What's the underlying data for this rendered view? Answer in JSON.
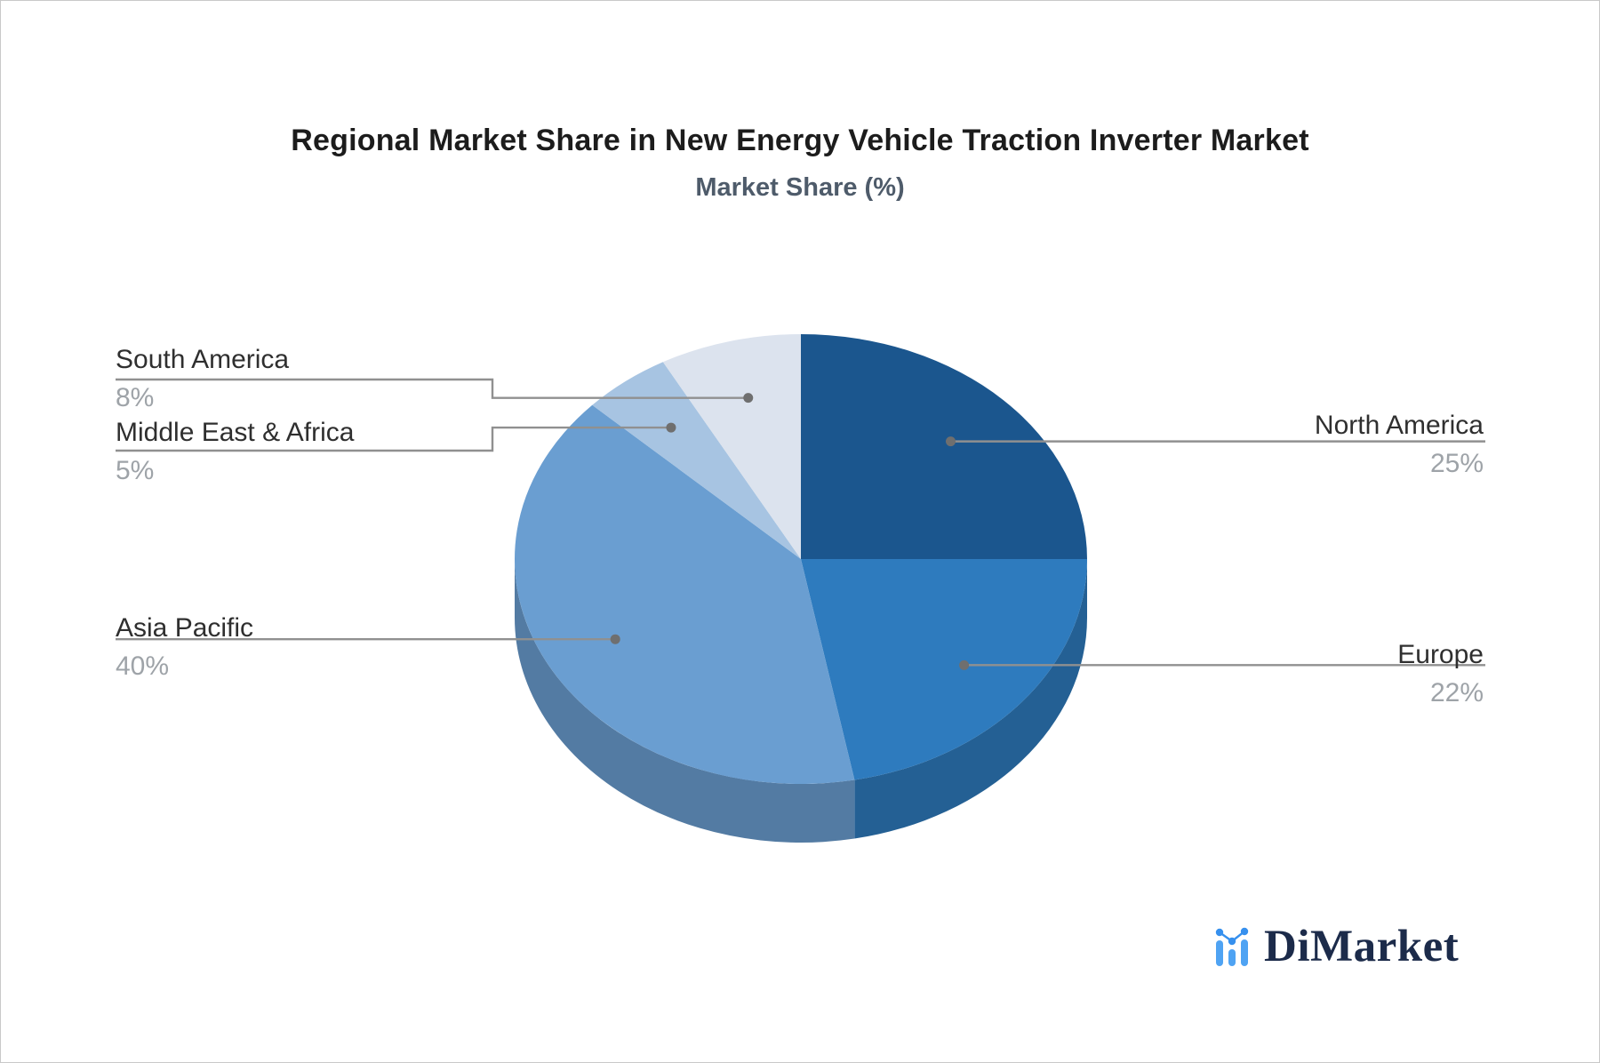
{
  "header": {
    "title": "Regional Market Share in New Energy Vehicle Traction Inverter Market",
    "subtitle": "Market Share (%)"
  },
  "chart_data": {
    "type": "pie",
    "style": "3d-extruded",
    "title": "Regional Market Share in New Energy Vehicle Traction Inverter Market",
    "subtitle": "Market Share (%)",
    "unit": "%",
    "start_angle": "12-oclock",
    "direction": "clockwise",
    "total": 100,
    "series": [
      {
        "name": "North America",
        "value": 25,
        "value_label": "25%",
        "color": "#1B568E"
      },
      {
        "name": "Europe",
        "value": 22,
        "value_label": "22%",
        "color": "#2E7BBE"
      },
      {
        "name": "Asia Pacific",
        "value": 40,
        "value_label": "40%",
        "color": "#6A9ED1"
      },
      {
        "name": "Middle East & Africa",
        "value": 5,
        "value_label": "5%",
        "color": "#A7C4E2"
      },
      {
        "name": "South America",
        "value": 8,
        "value_label": "8%",
        "color": "#DCE3EE"
      }
    ],
    "legend": "none",
    "labels_position": "outside-with-leader-lines"
  },
  "colors": {
    "leader_line": "#909090",
    "leader_dot": "#6f6f6f",
    "title_text": "#1c1c1c",
    "subtitle_text": "#4e5b6a",
    "label_text": "#2f2f2f",
    "value_text": "#9ea3a8",
    "logo_text": "#1c2b4a",
    "logo_icon": "#4fa3f3"
  },
  "brand": {
    "name": "DiMarket",
    "icon": "bar-chart-with-trend-dots-icon"
  }
}
